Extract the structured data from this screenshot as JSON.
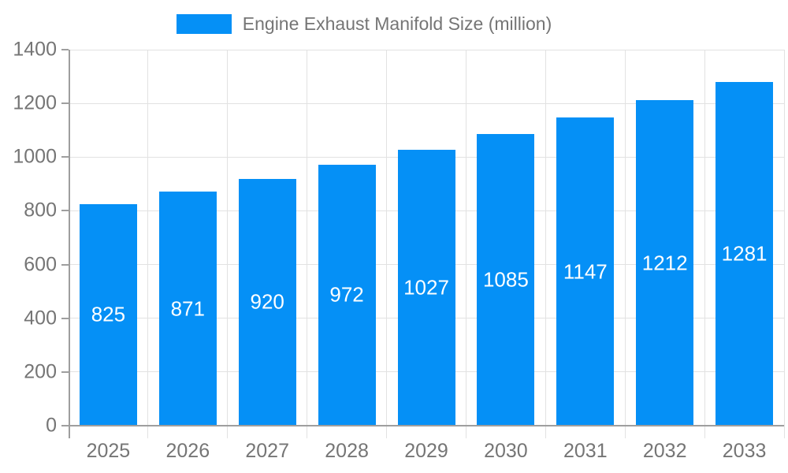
{
  "legend": {
    "label": "Engine Exhaust Manifold Size (million)"
  },
  "colors": {
    "bar": "#0590F6",
    "grid": "#E2E2E2",
    "axis": "#9E9E9E",
    "text": "#757575",
    "value_label": "#FFFFFF",
    "background": "#FFFFFF"
  },
  "chart_data": {
    "type": "bar",
    "title": "",
    "series_name": "Engine Exhaust Manifold Size (million)",
    "categories": [
      "2025",
      "2026",
      "2027",
      "2028",
      "2029",
      "2030",
      "2031",
      "2032",
      "2033"
    ],
    "values": [
      825,
      871,
      920,
      972,
      1027,
      1085,
      1147,
      1212,
      1281
    ],
    "xlabel": "",
    "ylabel": "",
    "ylim": [
      0,
      1400
    ],
    "yticks": [
      0,
      200,
      400,
      600,
      800,
      1000,
      1200,
      1400
    ],
    "grid": true,
    "legend_position": "top-center",
    "value_labels": "inside-center"
  }
}
